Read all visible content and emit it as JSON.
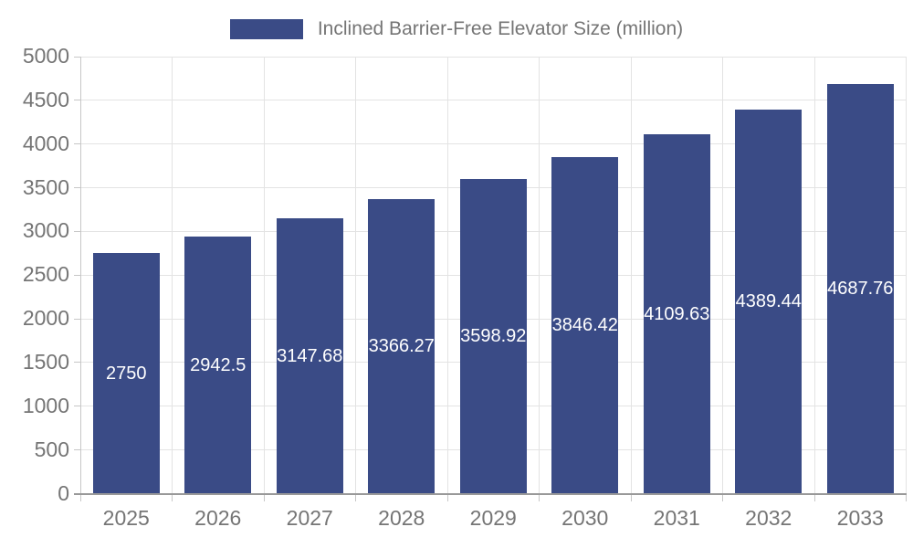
{
  "chart_data": {
    "type": "bar",
    "title": "Inclined Barrier-Free Elevator Size (million)",
    "legend": {
      "label": "Inclined Barrier-Free Elevator Size (million)",
      "position": "top-center"
    },
    "categories": [
      "2025",
      "2026",
      "2027",
      "2028",
      "2029",
      "2030",
      "2031",
      "2032",
      "2033"
    ],
    "values": [
      2750,
      2942.5,
      3147.68,
      3366.27,
      3598.92,
      3846.42,
      4109.63,
      4389.44,
      4687.76
    ],
    "value_labels": [
      "2750",
      "2942.5",
      "3147.68",
      "3366.27",
      "3598.92",
      "3846.42",
      "4109.63",
      "4389.44",
      "4687.76"
    ],
    "xlabel": "",
    "ylabel": "",
    "ylim": [
      0,
      5000
    ],
    "ytick_step": 500,
    "yticks": [
      0,
      500,
      1000,
      1500,
      2000,
      2500,
      3000,
      3500,
      4000,
      4500,
      5000
    ],
    "grid": "on",
    "colors": {
      "bar": "#3a4b86",
      "value_label": "#ffffff",
      "axis_text": "#757575",
      "legend_text": "#757575",
      "grid_line": "#e3e3e3",
      "axis_line": "#999999",
      "tick_line": "#c7c7c7",
      "background": "#ffffff"
    }
  }
}
